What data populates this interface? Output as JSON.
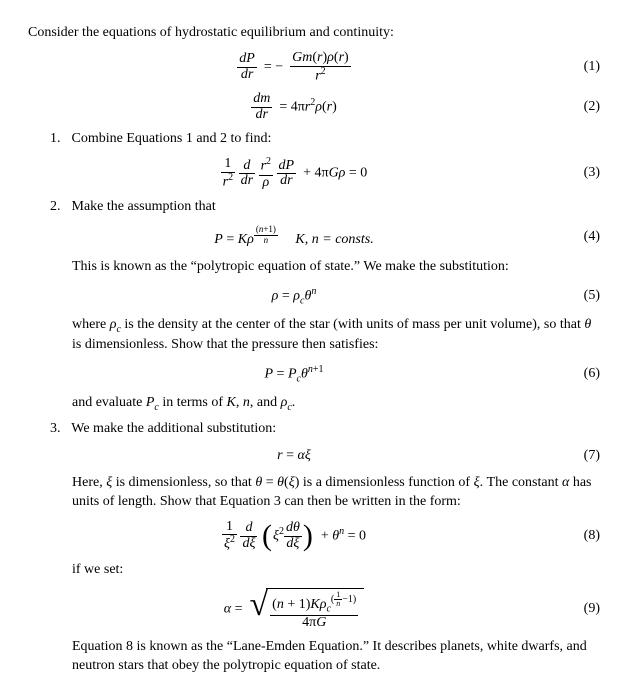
{
  "intro": "Consider the equations of hydrostatic equilibrium and continuity:",
  "eq1_num": "(1)",
  "eq2_num": "(2)",
  "item1_label": "1.",
  "item1_text": "Combine Equations 1 and 2 to find:",
  "eq3_num": "(3)",
  "item2_label": "2.",
  "item2_text": "Make the assumption that",
  "eq4_tail": "K, n = consts.",
  "eq4_num": "(4)",
  "polytropic_text": "This is known as the “polytropic equation of state.” We make the substitution:",
  "eq5_num": "(5)",
  "rho_c_text_a": "where ",
  "rho_c_text_b": " is the density at the center of the star (with units of mass per unit volume), so that ",
  "rho_c_text_c": " is dimensionless. Show that the pressure then satisfies:",
  "eq6_num": "(6)",
  "eval_text_a": "and evaluate ",
  "eval_text_b": " in terms of ",
  "eval_text_c": ", and ",
  "eval_text_d": ".",
  "item3_label": "3.",
  "item3_text": "We make the additional substitution:",
  "eq7_num": "(7)",
  "xi_text_a": "Here, ",
  "xi_text_b": " is dimensionless, so that ",
  "xi_text_c": " is a dimensionless function of ",
  "xi_text_d": ". The constant ",
  "xi_text_e": " has units of length. Show that Equation 3 can then be written in the form:",
  "eq8_num": "(8)",
  "ifweset": "if we set:",
  "eq9_num": "(9)",
  "final_text": "Equation 8 is known as the “Lane-Emden Equation.” It describes planets, white dwarfs, and neutron stars that obey the polytropic equation of state."
}
